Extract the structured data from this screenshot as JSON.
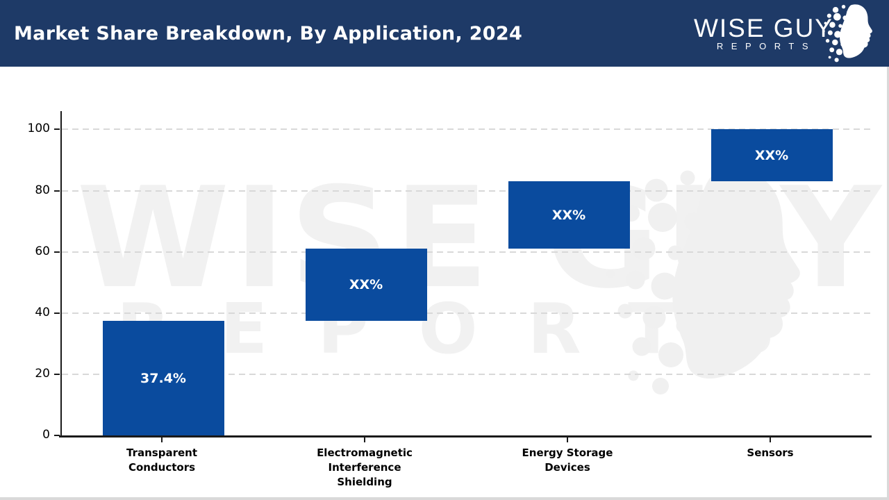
{
  "header": {
    "title": "Market Share Breakdown, By Application, 2024",
    "logo": {
      "line1": "WISE GUY",
      "line2": "REPORTS",
      "icon": "dotted-head-profile"
    }
  },
  "watermark": {
    "line1": "WISE GUY",
    "line2": "REPORTS",
    "icon": "dotted-head-profile"
  },
  "colors": {
    "header_bg": "#1E3A67",
    "bar_fill": "#0A4B9E",
    "bar_label": "#FFFFFF",
    "gridline": "#D8D8D8",
    "axis": "#1A1A1A",
    "tick_label": "#000000",
    "category_label": "#000000",
    "watermark_gray": "#F1F1F1",
    "bottom_strip": "#D9D9D9"
  },
  "chart_data": {
    "type": "bar",
    "subtype": "waterfall-stacked-percent",
    "title": "Market Share Breakdown, By Application, 2024",
    "categories": [
      [
        "Transparent",
        "Conductors"
      ],
      [
        "Electromagnetic",
        "Interference",
        "Shielding"
      ],
      [
        "Energy Storage",
        "Devices"
      ],
      [
        "Sensors"
      ]
    ],
    "segments": [
      {
        "start": 0,
        "end": 37.4,
        "value": 37.4,
        "label": "37.4%"
      },
      {
        "start": 37.4,
        "end": 61,
        "value": 23.6,
        "label": "XX%"
      },
      {
        "start": 61,
        "end": 83,
        "value": 22,
        "label": "XX%"
      },
      {
        "start": 83,
        "end": 100,
        "value": 17,
        "label": "XX%"
      }
    ],
    "yticks": [
      0,
      20,
      40,
      60,
      80,
      100
    ],
    "ylim": [
      0,
      106
    ],
    "xlabel": "",
    "ylabel": "",
    "grid": "horizontal-dashed",
    "legend": "none"
  }
}
